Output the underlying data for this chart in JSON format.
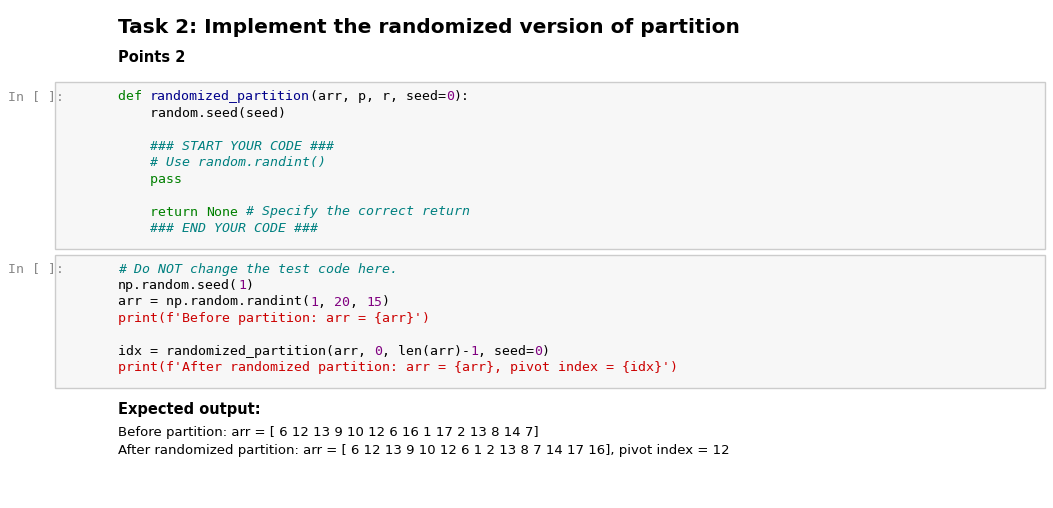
{
  "title": "Task 2: Implement the randomized version of partition",
  "points": "Points 2",
  "bg_color": "#ffffff",
  "cell_bg": "#f7f7f7",
  "cell_border": "#cccccc",
  "label_color": "#888888",
  "in_label": "In [ ]:",
  "expected_output_title": "Expected output:",
  "expected_line1": "Before partition: arr = [ 6 12 13 9 10 12 6 16 1 17 2 13 8 14 7]",
  "expected_line2": "After randomized partition: arr = [ 6 12 13 9 10 12 6 1 2 13 8 7 14 17 16], pivot index = 12",
  "cell1_lines": [
    [
      {
        "t": "def ",
        "c": "#008000",
        "i": false
      },
      {
        "t": "randomized_partition",
        "c": "#00008B",
        "i": false
      },
      {
        "t": "(arr, p, r, seed=",
        "c": "#000000",
        "i": false
      },
      {
        "t": "0",
        "c": "#800080",
        "i": false
      },
      {
        "t": "):",
        "c": "#000000",
        "i": false
      }
    ],
    [
      {
        "t": "    random.seed(seed)",
        "c": "#000000",
        "i": false
      }
    ],
    [],
    [
      {
        "t": "    ### START YOUR CODE ###",
        "c": "#008080",
        "i": true
      }
    ],
    [
      {
        "t": "    # Use random.randint()",
        "c": "#008080",
        "i": true
      }
    ],
    [
      {
        "t": "    pass",
        "c": "#008000",
        "i": false
      }
    ],
    [],
    [
      {
        "t": "    return ",
        "c": "#008000",
        "i": false
      },
      {
        "t": "None",
        "c": "#008000",
        "i": false
      },
      {
        "t": " # Specify the correct return",
        "c": "#008080",
        "i": true
      }
    ],
    [
      {
        "t": "    ### END YOUR CODE ###",
        "c": "#008080",
        "i": true
      }
    ]
  ],
  "cell2_lines": [
    [
      {
        "t": "# Do NOT change the test code here.",
        "c": "#008080",
        "i": true
      }
    ],
    [
      {
        "t": "np.random.seed(",
        "c": "#000000",
        "i": false
      },
      {
        "t": "1",
        "c": "#800080",
        "i": false
      },
      {
        "t": ")",
        "c": "#000000",
        "i": false
      }
    ],
    [
      {
        "t": "arr = np.random.randint(",
        "c": "#000000",
        "i": false
      },
      {
        "t": "1",
        "c": "#800080",
        "i": false
      },
      {
        "t": ", ",
        "c": "#000000",
        "i": false
      },
      {
        "t": "20",
        "c": "#800080",
        "i": false
      },
      {
        "t": ", ",
        "c": "#000000",
        "i": false
      },
      {
        "t": "15",
        "c": "#800080",
        "i": false
      },
      {
        "t": ")",
        "c": "#000000",
        "i": false
      }
    ],
    [
      {
        "t": "print(f'Before partition: arr = {arr}')",
        "c": "#cc0000",
        "i": false
      }
    ],
    [],
    [
      {
        "t": "idx = randomized_partition(arr, ",
        "c": "#000000",
        "i": false
      },
      {
        "t": "0",
        "c": "#800080",
        "i": false
      },
      {
        "t": ", len(arr)-",
        "c": "#000000",
        "i": false
      },
      {
        "t": "1",
        "c": "#800080",
        "i": false
      },
      {
        "t": ", seed=",
        "c": "#000000",
        "i": false
      },
      {
        "t": "0",
        "c": "#800080",
        "i": false
      },
      {
        "t": ")",
        "c": "#000000",
        "i": false
      }
    ],
    [
      {
        "t": "print(f'After randomized partition: arr = {arr}, pivot index = {idx}')",
        "c": "#cc0000",
        "i": false
      }
    ]
  ]
}
